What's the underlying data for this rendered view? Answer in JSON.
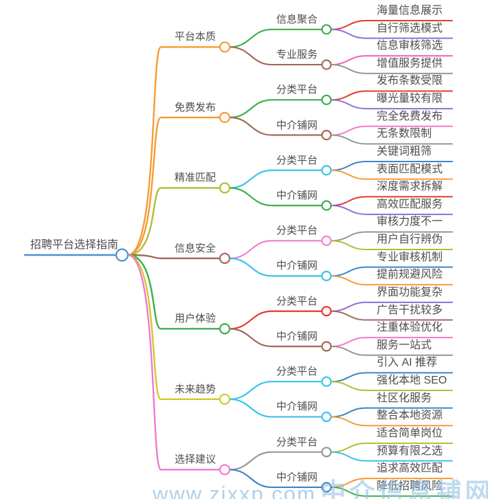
{
  "root": {
    "label": "招聘平台选择指南",
    "color": "#4a90d2"
  },
  "branches": [
    {
      "label": "平台本质",
      "color": "#f79b33",
      "children": [
        {
          "label": "信息聚合",
          "color": "#3eae4d",
          "leaves": [
            {
              "label": "海量信息展示",
              "color": "#e63a30"
            },
            {
              "label": "自行筛选模式",
              "color": "#8f6fd8"
            }
          ]
        },
        {
          "label": "专业服务",
          "color": "#a26a5c",
          "leaves": [
            {
              "label": "信息审核筛选",
              "color": "#f45cc0"
            },
            {
              "label": "增值服务提供",
              "color": "#969696"
            }
          ]
        }
      ]
    },
    {
      "label": "免费发布",
      "color": "#f79b33",
      "children": [
        {
          "label": "分类平台",
          "color": "#3eae4d",
          "leaves": [
            {
              "label": "发布条数受限",
              "color": "#e63a30"
            },
            {
              "label": "曝光量较有限",
              "color": "#8f6fd8"
            }
          ]
        },
        {
          "label": "中介铺网",
          "color": "#a26a5c",
          "leaves": [
            {
              "label": "完全免费发布",
              "color": "#f178cd"
            },
            {
              "label": "无条数限制",
              "color": "#969696"
            }
          ]
        }
      ]
    },
    {
      "label": "精准匹配",
      "color": "#b3bd35",
      "children": [
        {
          "label": "分类平台",
          "color": "#3ac3e8",
          "leaves": [
            {
              "label": "关键词粗筛",
              "color": "#3e84c6"
            },
            {
              "label": "表面匹配模式",
              "color": "#f79b33"
            }
          ]
        },
        {
          "label": "中介铺网",
          "color": "#3eae4d",
          "leaves": [
            {
              "label": "深度需求拆解",
              "color": "#e63a30"
            },
            {
              "label": "高效匹配服务",
              "color": "#8f6fd8"
            }
          ]
        }
      ]
    },
    {
      "label": "信息安全",
      "color": "#a26a5c",
      "children": [
        {
          "label": "分类平台",
          "color": "#ee82d0",
          "leaves": [
            {
              "label": "审核力度不一",
              "color": "#969696"
            },
            {
              "label": "用户自行辨伪",
              "color": "#b3bd35"
            }
          ]
        },
        {
          "label": "中介铺网",
          "color": "#3ac3e8",
          "leaves": [
            {
              "label": "专业审核机制",
              "color": "#3e84c6"
            },
            {
              "label": "提前规避风险",
              "color": "#f79b33"
            }
          ]
        }
      ]
    },
    {
      "label": "用户体验",
      "color": "#3eae4d",
      "children": [
        {
          "label": "分类平台",
          "color": "#e63a30",
          "leaves": [
            {
              "label": "界面功能复杂",
              "color": "#8f6fd8"
            },
            {
              "label": "广告干扰较多",
              "color": "#a26a5c"
            }
          ]
        },
        {
          "label": "中介铺网",
          "color": "#a26a5c",
          "leaves": [
            {
              "label": "注重体验优化",
              "color": "#f178cd"
            },
            {
              "label": "服务一站式",
              "color": "#969696"
            }
          ]
        }
      ]
    },
    {
      "label": "未来趋势",
      "color": "#d4c62f",
      "children": [
        {
          "label": "分类平台",
          "color": "#3ac3e8",
          "leaves": [
            {
              "label": "引入 AI 推荐",
              "color": "#3e84c6"
            },
            {
              "label": "强化本地 SEO",
              "color": "#b3bd35"
            }
          ]
        },
        {
          "label": "中介铺网",
          "color": "#3ac3e8",
          "leaves": [
            {
              "label": "社区化服务",
              "color": "#3e84c6"
            },
            {
              "label": "整合本地资源",
              "color": "#f79b33"
            }
          ]
        }
      ]
    },
    {
      "label": "选择建议",
      "color": "#f178cd",
      "children": [
        {
          "label": "分类平台",
          "color": "#969696",
          "leaves": [
            {
              "label": "适合简单岗位",
              "color": "#b3bd35"
            },
            {
              "label": "预算有限之选",
              "color": "#3ac3e8"
            }
          ]
        },
        {
          "label": "中介铺网",
          "color": "#3e84c6",
          "leaves": [
            {
              "label": "追求高效匹配",
              "color": "#f79b33"
            },
            {
              "label": "降低招聘风险",
              "color": "#3eae4d"
            }
          ]
        }
      ]
    }
  ],
  "watermark": {
    "url": "www.zjxxp.com",
    "name": "中介信息铺网"
  }
}
